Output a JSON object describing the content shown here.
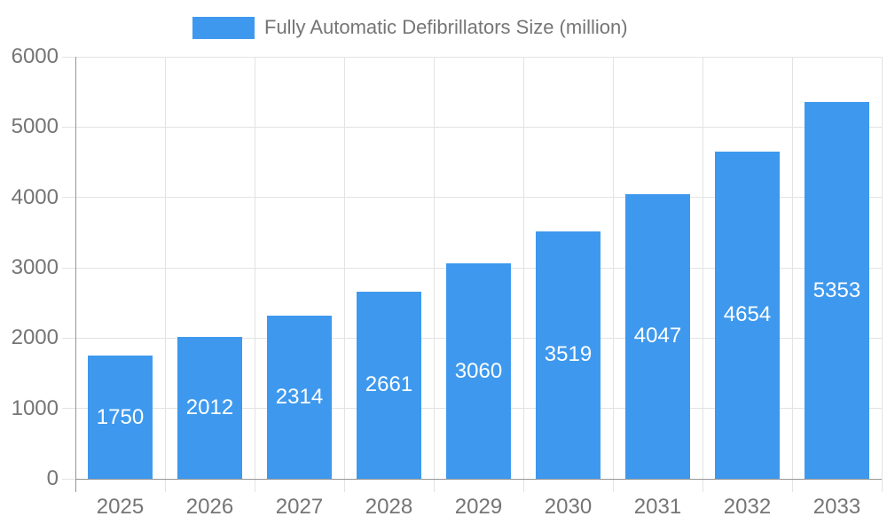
{
  "chart_data": {
    "type": "bar",
    "title": "",
    "categories": [
      "2025",
      "2026",
      "2027",
      "2028",
      "2029",
      "2030",
      "2031",
      "2032",
      "2033"
    ],
    "values": [
      1750,
      2012,
      2314,
      2661,
      3060,
      3519,
      4047,
      4654,
      5353
    ],
    "series_name": "Fully Automatic Defibrillators Size (million)",
    "xlabel": "",
    "ylabel": "",
    "ylim": [
      0,
      6000
    ],
    "yticks": [
      0,
      1000,
      2000,
      3000,
      4000,
      5000,
      6000
    ],
    "grid": true,
    "legend_position": "top",
    "value_labels": "inside-center",
    "colors": {
      "bar": "#3e99ee",
      "bar_label": "#ffffff",
      "axis_text": "#757575",
      "axis_line": "#959595",
      "grid_line": "#e3e3e3",
      "background": "#ffffff"
    }
  }
}
